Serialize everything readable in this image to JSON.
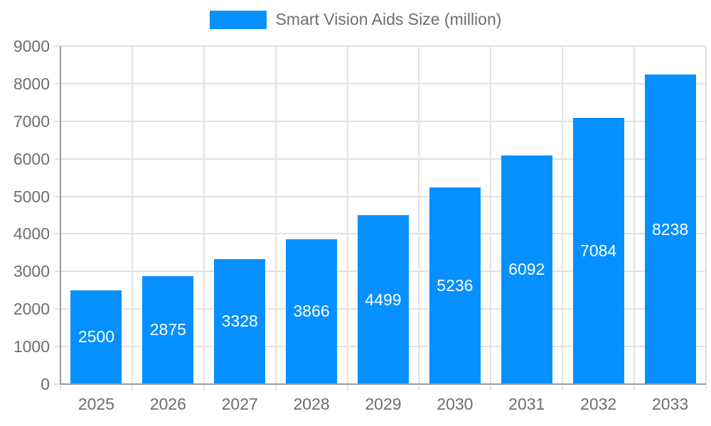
{
  "chart_data": {
    "type": "bar",
    "title": "Smart Vision Aids Size (million)",
    "categories": [
      "2025",
      "2026",
      "2027",
      "2028",
      "2029",
      "2030",
      "2031",
      "2032",
      "2033"
    ],
    "values": [
      2500,
      2875,
      3328,
      3866,
      4499,
      5236,
      6092,
      7084,
      8238
    ],
    "xlabel": "",
    "ylabel": "",
    "ylim": [
      0,
      9000
    ],
    "y_ticks": [
      0,
      1000,
      2000,
      3000,
      4000,
      5000,
      6000,
      7000,
      8000,
      9000
    ],
    "grid": true,
    "legend_position": "top",
    "value_labels": "inside-center-white"
  },
  "legend": {
    "label": "Smart Vision Aids Size (million)"
  },
  "colors": {
    "bar": "#0690ff",
    "value_label": "#ffffff",
    "axis_text": "#6e6e6e",
    "grid_line": "#e2e2e2",
    "axis_line": "#9a9a9a",
    "background": "#ffffff"
  }
}
